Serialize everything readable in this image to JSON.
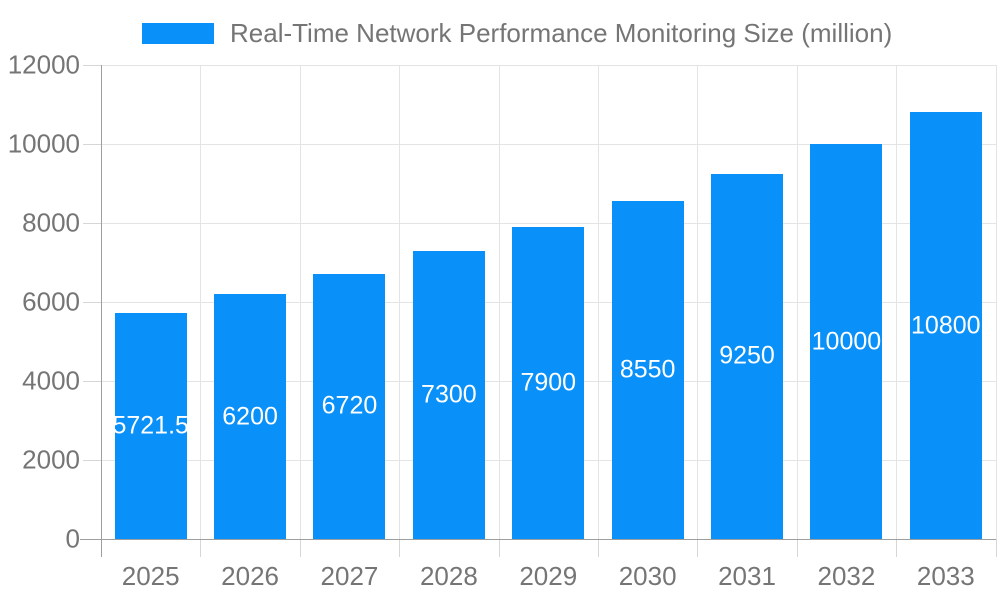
{
  "legend": {
    "label": "Real-Time Network Performance Monitoring Size (million)"
  },
  "chart_data": {
    "type": "bar",
    "title": "",
    "categories": [
      "2025",
      "2026",
      "2027",
      "2028",
      "2029",
      "2030",
      "2031",
      "2032",
      "2033"
    ],
    "series": [
      {
        "name": "Real-Time Network Performance Monitoring Size (million)",
        "values": [
          5721.5,
          6200,
          6720,
          7300,
          7900,
          8550,
          9250,
          10000,
          10800
        ]
      }
    ],
    "data_labels": [
      "5721.5",
      "6200",
      "6720",
      "7300",
      "7900",
      "8550",
      "9250",
      "10000",
      "10800"
    ],
    "xlabel": "",
    "ylabel": "",
    "ylim": [
      0,
      12000
    ],
    "ytick_step": 2000,
    "yticks": [
      0,
      2000,
      4000,
      6000,
      8000,
      10000,
      12000
    ],
    "grid": true,
    "legend_position": "top",
    "colors": {
      "bar": "#0a90f9",
      "data_label": "#ffffff",
      "axis_label": "#757575",
      "gridline": "#e4e4e4",
      "axis_line": "#9e9e9e",
      "tick": "#d6d6d6",
      "background": "#ffffff"
    }
  }
}
